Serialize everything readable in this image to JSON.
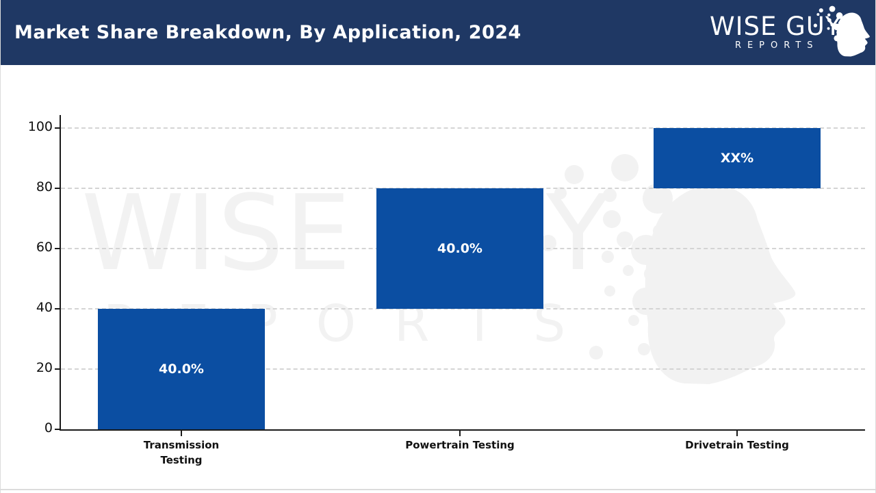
{
  "header": {
    "title": "Market Share Breakdown, By Application, 2024",
    "bg_color": "#1f3864",
    "logo": {
      "line1": "WISE GUY",
      "line2": "REPORTS"
    }
  },
  "watermark": {
    "line1": "WISE GUY",
    "line2": "REPORTS"
  },
  "chart_data": {
    "type": "bar",
    "variant": "floating-segment-bars (stacked percentage breakdown)",
    "title": "Market Share Breakdown, By Application, 2024",
    "categories": [
      "Transmission\nTesting",
      "Powertrain Testing",
      "Drivetrain Testing"
    ],
    "bars": [
      {
        "category": "Transmission Testing",
        "start": 0,
        "end": 40,
        "label": "40.0%"
      },
      {
        "category": "Powertrain Testing",
        "start": 40,
        "end": 80,
        "label": "40.0%"
      },
      {
        "category": "Drivetrain Testing",
        "start": 80,
        "end": 100,
        "label": "XX%"
      }
    ],
    "yticks": [
      0,
      20,
      40,
      60,
      80,
      100
    ],
    "ylim": [
      0,
      104
    ],
    "xlabel": "",
    "ylabel": "",
    "grid": "horizontal dashed",
    "legend_position": "none",
    "bar_color": "#0b4ea2",
    "bar_label_color": "#ffffff",
    "axis_color": "#1a1a1a"
  }
}
